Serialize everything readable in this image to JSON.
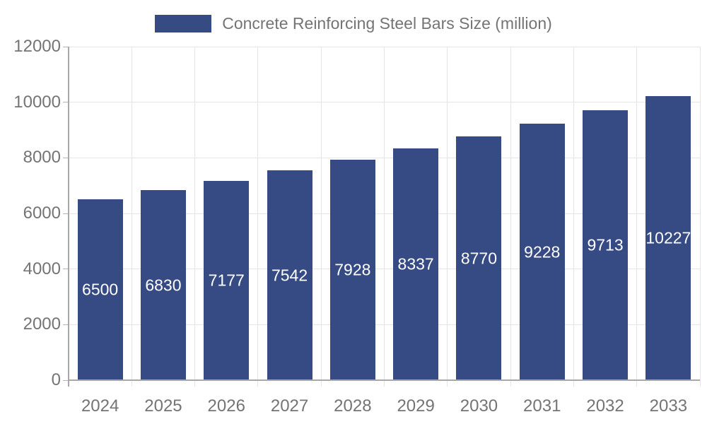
{
  "chart_data": {
    "type": "bar",
    "title": "Concrete Reinforcing Steel Bars Size (million)",
    "legend_label": "Concrete Reinforcing Steel Bars Size (million)",
    "categories": [
      "2024",
      "2025",
      "2026",
      "2027",
      "2028",
      "2029",
      "2030",
      "2031",
      "2032",
      "2033"
    ],
    "series": [
      {
        "name": "Concrete Reinforcing Steel Bars Size (million)",
        "values": [
          6500,
          6830,
          7177,
          7542,
          7928,
          8337,
          8770,
          9228,
          9713,
          10227
        ]
      }
    ],
    "value_labels": [
      "6500",
      "6830",
      "7177",
      "7542",
      "7928",
      "8337",
      "8770",
      "9228",
      "9713",
      "10227"
    ],
    "xlabel": "",
    "ylabel": "",
    "ylim": [
      0,
      12000
    ],
    "yticks": [
      0,
      2000,
      4000,
      6000,
      8000,
      10000,
      12000
    ],
    "ytick_labels": [
      "0",
      "2000",
      "4000",
      "6000",
      "8000",
      "10000",
      "12000"
    ],
    "grid": true,
    "legend_position": "top-center",
    "value_label_position": "inside-center",
    "colors": {
      "bar": "#364a83",
      "value_label_text": "#ffffff",
      "axis_text": "#747474",
      "legend_text": "#747474",
      "grid_line": "#e5e5e5",
      "axis_line": "#a8a8a8",
      "tick_mark": "#b4b4b4",
      "background": "#ffffff"
    }
  }
}
